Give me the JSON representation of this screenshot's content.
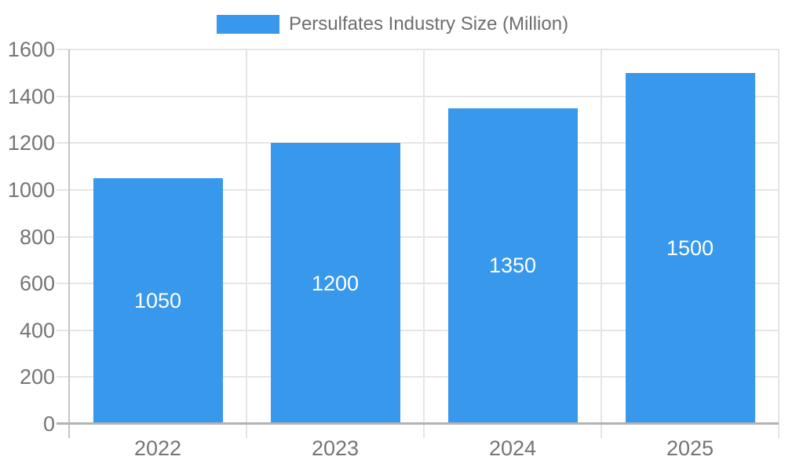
{
  "chart_data": {
    "type": "bar",
    "title": "Persulfates Industry Size (Million)",
    "categories": [
      "2022",
      "2023",
      "2024",
      "2025"
    ],
    "values": [
      1050,
      1200,
      1350,
      1500
    ],
    "series": [
      {
        "name": "Persulfates Industry Size (Million)",
        "values": [
          1050,
          1200,
          1350,
          1500
        ]
      }
    ],
    "xlabel": "",
    "ylabel": "",
    "ylim": [
      0,
      1600
    ],
    "ytick_step": 200,
    "ytick_labels": [
      "0",
      "200",
      "400",
      "600",
      "800",
      "1000",
      "1200",
      "1400",
      "1600"
    ],
    "grid": true,
    "legend_position": "top-center",
    "value_labels_inside_bars": true,
    "colors": {
      "bar": "#3898ec",
      "value_text": "#ffffff",
      "axis_text": "#757575",
      "legend_text": "#6e6e6e",
      "gridline": "#e6e6e6",
      "baseline": "#b3b3b3",
      "axis_line": "#c4c4c4",
      "background": "#ffffff"
    }
  }
}
